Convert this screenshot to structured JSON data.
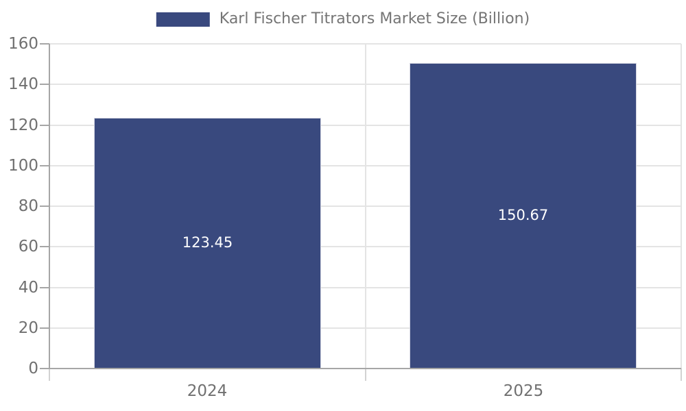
{
  "chart_data": {
    "type": "bar",
    "title": "Karl Fischer Titrators Market Size (Billion)",
    "categories": [
      "2024",
      "2025"
    ],
    "values": [
      123.45,
      150.67
    ],
    "value_labels": [
      "123.45",
      "150.67"
    ],
    "xlabel": "",
    "ylabel": "",
    "ylim": [
      0,
      160
    ],
    "ytick_step": 20,
    "y_tick_labels": [
      "0",
      "20",
      "40",
      "60",
      "80",
      "100",
      "120",
      "140",
      "160"
    ],
    "grid": true,
    "legend_position": "top-center",
    "colors": {
      "bar_fill": "#39497E",
      "bar_edge": "#D3D5E1",
      "bar_value_label": "#FFFFFF",
      "tick_label": "#707070",
      "legend_text": "#757575",
      "axis_line": "#A6A6A6",
      "gridline": "#E4E4E4",
      "below_axis_tick": "#D2D2D2"
    }
  }
}
